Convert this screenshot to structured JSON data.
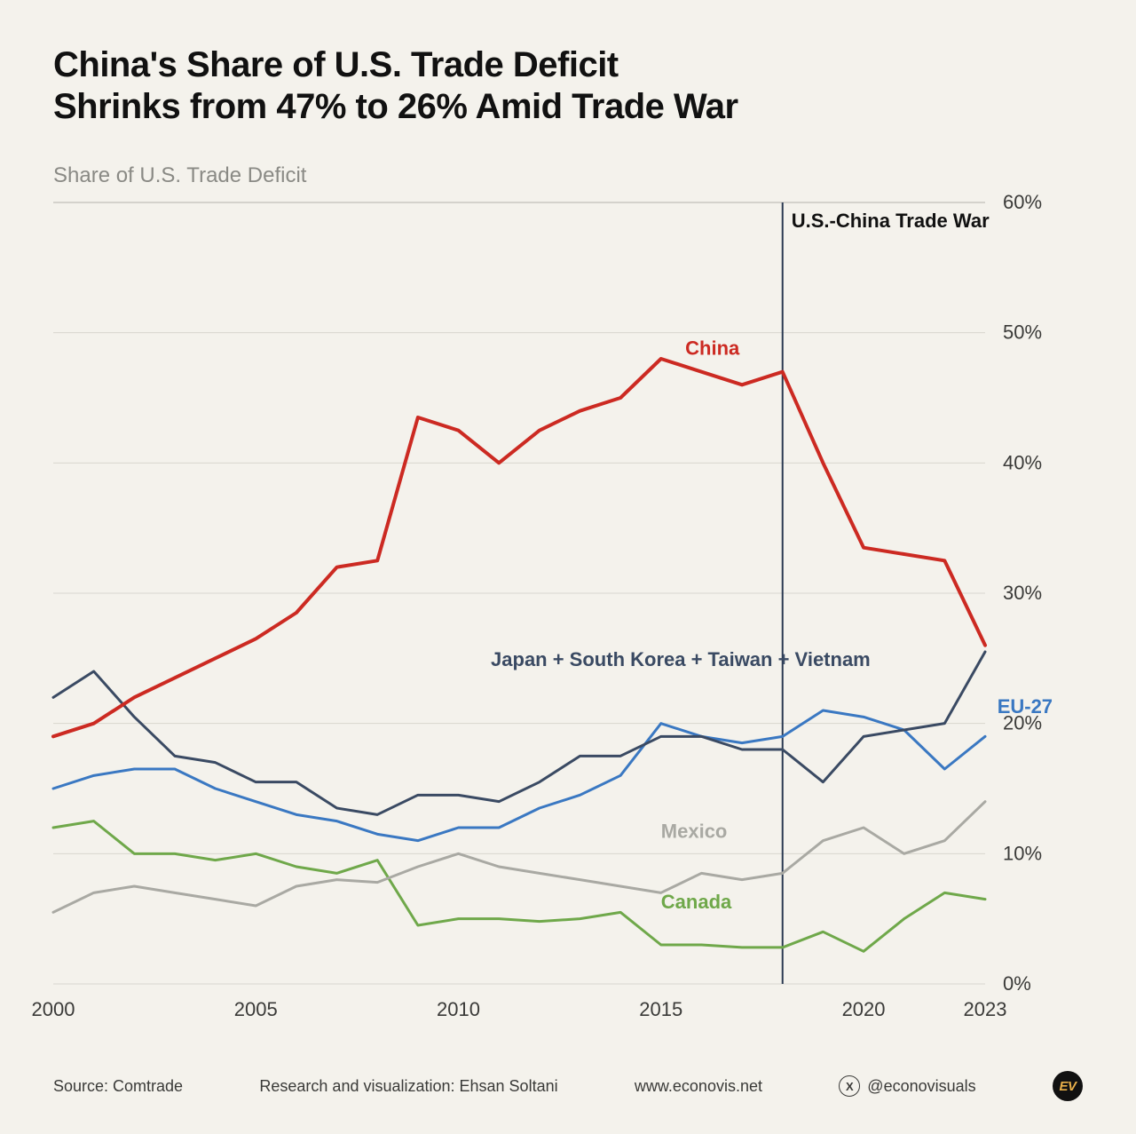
{
  "title_line1": "China's Share of U.S. Trade Deficit",
  "title_line2": "Shrinks from 47% to 26% Amid Trade War",
  "subtitle": "Share of U.S. Trade Deficit",
  "chart": {
    "type": "line",
    "background_color": "#f4f2ec",
    "grid_color": "#d9d7cf",
    "grid_color_top": "#b5b3ab",
    "x": {
      "min": 2000,
      "max": 2023,
      "ticks": [
        2000,
        2005,
        2010,
        2015,
        2020,
        2023
      ]
    },
    "y": {
      "min": 0,
      "max": 60,
      "ticks": [
        0,
        10,
        20,
        30,
        40,
        50,
        60
      ],
      "suffix": "%"
    },
    "marker": {
      "x": 2018,
      "label": "U.S.-China Trade War"
    },
    "label_fontsize": 22,
    "tick_fontsize": 22,
    "line_width_main": 4,
    "line_width_other": 3,
    "series": [
      {
        "name": "China",
        "label": "China",
        "color": "#cc2a22",
        "width": 4,
        "label_x": 2015.6,
        "label_y": 48.3,
        "points": [
          [
            2000,
            19
          ],
          [
            2001,
            20
          ],
          [
            2002,
            22
          ],
          [
            2003,
            23.5
          ],
          [
            2004,
            25
          ],
          [
            2005,
            26.5
          ],
          [
            2006,
            28.5
          ],
          [
            2007,
            32
          ],
          [
            2008,
            32.5
          ],
          [
            2009,
            43.5
          ],
          [
            2010,
            42.5
          ],
          [
            2011,
            40
          ],
          [
            2012,
            42.5
          ],
          [
            2013,
            44
          ],
          [
            2014,
            45
          ],
          [
            2015,
            48
          ],
          [
            2016,
            47
          ],
          [
            2017,
            46
          ],
          [
            2018,
            47
          ],
          [
            2019,
            40
          ],
          [
            2020,
            33.5
          ],
          [
            2021,
            33
          ],
          [
            2022,
            32.5
          ],
          [
            2023,
            26
          ]
        ]
      },
      {
        "name": "JapanKoreaTaiwanVietnam",
        "label": "Japan + South Korea + Taiwan + Vietnam",
        "color": "#3a4a63",
        "width": 3,
        "label_x": 2010.8,
        "label_y": 24.4,
        "label_anchor": "start",
        "points": [
          [
            2000,
            22
          ],
          [
            2001,
            24
          ],
          [
            2002,
            20.5
          ],
          [
            2003,
            17.5
          ],
          [
            2004,
            17
          ],
          [
            2005,
            15.5
          ],
          [
            2006,
            15.5
          ],
          [
            2007,
            13.5
          ],
          [
            2008,
            13
          ],
          [
            2009,
            14.5
          ],
          [
            2010,
            14.5
          ],
          [
            2011,
            14
          ],
          [
            2012,
            15.5
          ],
          [
            2013,
            17.5
          ],
          [
            2014,
            17.5
          ],
          [
            2015,
            19
          ],
          [
            2016,
            19
          ],
          [
            2017,
            18
          ],
          [
            2018,
            18
          ],
          [
            2019,
            15.5
          ],
          [
            2020,
            19
          ],
          [
            2021,
            19.5
          ],
          [
            2022,
            20
          ],
          [
            2023,
            25.5
          ]
        ]
      },
      {
        "name": "EU27",
        "label": "EU-27",
        "color": "#3a78c2",
        "width": 3,
        "label_x": 2023.3,
        "label_y": 20.8,
        "label_anchor": "start",
        "points": [
          [
            2000,
            15
          ],
          [
            2001,
            16
          ],
          [
            2002,
            16.5
          ],
          [
            2003,
            16.5
          ],
          [
            2004,
            15
          ],
          [
            2005,
            14
          ],
          [
            2006,
            13
          ],
          [
            2007,
            12.5
          ],
          [
            2008,
            11.5
          ],
          [
            2009,
            11
          ],
          [
            2010,
            12
          ],
          [
            2011,
            12
          ],
          [
            2012,
            13.5
          ],
          [
            2013,
            14.5
          ],
          [
            2014,
            16
          ],
          [
            2015,
            20
          ],
          [
            2016,
            19
          ],
          [
            2017,
            18.5
          ],
          [
            2018,
            19
          ],
          [
            2019,
            21
          ],
          [
            2020,
            20.5
          ],
          [
            2021,
            19.5
          ],
          [
            2022,
            16.5
          ],
          [
            2023,
            19
          ]
        ]
      },
      {
        "name": "Mexico",
        "label": "Mexico",
        "color": "#a9a9a3",
        "width": 3,
        "label_x": 2015.0,
        "label_y": 11.2,
        "points": [
          [
            2000,
            5.5
          ],
          [
            2001,
            7
          ],
          [
            2002,
            7.5
          ],
          [
            2003,
            7
          ],
          [
            2004,
            6.5
          ],
          [
            2005,
            6
          ],
          [
            2006,
            7.5
          ],
          [
            2007,
            8
          ],
          [
            2008,
            7.8
          ],
          [
            2009,
            9
          ],
          [
            2010,
            10
          ],
          [
            2011,
            9
          ],
          [
            2012,
            8.5
          ],
          [
            2013,
            8
          ],
          [
            2014,
            7.5
          ],
          [
            2015,
            7
          ],
          [
            2016,
            8.5
          ],
          [
            2017,
            8
          ],
          [
            2018,
            8.5
          ],
          [
            2019,
            11
          ],
          [
            2020,
            12
          ],
          [
            2021,
            10
          ],
          [
            2022,
            11
          ],
          [
            2023,
            14
          ]
        ]
      },
      {
        "name": "Canada",
        "label": "Canada",
        "color": "#6fa84a",
        "width": 3,
        "label_x": 2015.0,
        "label_y": 5.8,
        "points": [
          [
            2000,
            12
          ],
          [
            2001,
            12.5
          ],
          [
            2002,
            10
          ],
          [
            2003,
            10
          ],
          [
            2004,
            9.5
          ],
          [
            2005,
            10
          ],
          [
            2006,
            9
          ],
          [
            2007,
            8.5
          ],
          [
            2008,
            9.5
          ],
          [
            2009,
            4.5
          ],
          [
            2010,
            5
          ],
          [
            2011,
            5
          ],
          [
            2012,
            4.8
          ],
          [
            2013,
            5
          ],
          [
            2014,
            5.5
          ],
          [
            2015,
            3
          ],
          [
            2016,
            3
          ],
          [
            2017,
            2.8
          ],
          [
            2018,
            2.8
          ],
          [
            2019,
            4
          ],
          [
            2020,
            2.5
          ],
          [
            2021,
            5
          ],
          [
            2022,
            7
          ],
          [
            2023,
            6.5
          ]
        ]
      }
    ]
  },
  "footer": {
    "source": "Source: Comtrade",
    "credit": "Research and visualization: Ehsan Soltani",
    "site": "www.econovis.net",
    "handle": "@econovisuals",
    "logo_text": "EV"
  }
}
